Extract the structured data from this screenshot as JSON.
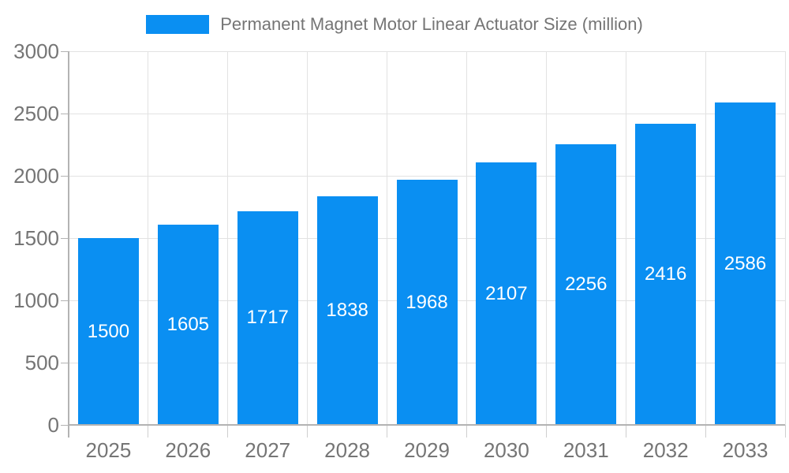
{
  "legend": {
    "label": "Permanent Magnet Motor Linear Actuator Size (million)"
  },
  "chart_data": {
    "type": "bar",
    "title": "Permanent Magnet Motor Linear Actuator Size (million)",
    "categories": [
      "2025",
      "2026",
      "2027",
      "2028",
      "2029",
      "2030",
      "2031",
      "2032",
      "2033"
    ],
    "values": [
      1500,
      1605,
      1717,
      1838,
      1968,
      2107,
      2256,
      2416,
      2586
    ],
    "series_name": "Permanent Magnet Motor Linear Actuator Size (million)",
    "xlabel": "",
    "ylabel": "",
    "ylim": [
      0,
      3000
    ],
    "yticks": [
      0,
      500,
      1000,
      1500,
      2000,
      2500,
      3000
    ],
    "grid": true,
    "legend_position": "top",
    "value_label_position": "inside-center",
    "colors": {
      "bar": "#0a8ff2",
      "value_label": "#ffffff",
      "axis_text": "#757575",
      "legend_text": "#757575",
      "gridline": "#e2e2e2",
      "tick": "#cfcfcf",
      "axis_line": "#b3b3b3",
      "background": "#ffffff"
    }
  }
}
